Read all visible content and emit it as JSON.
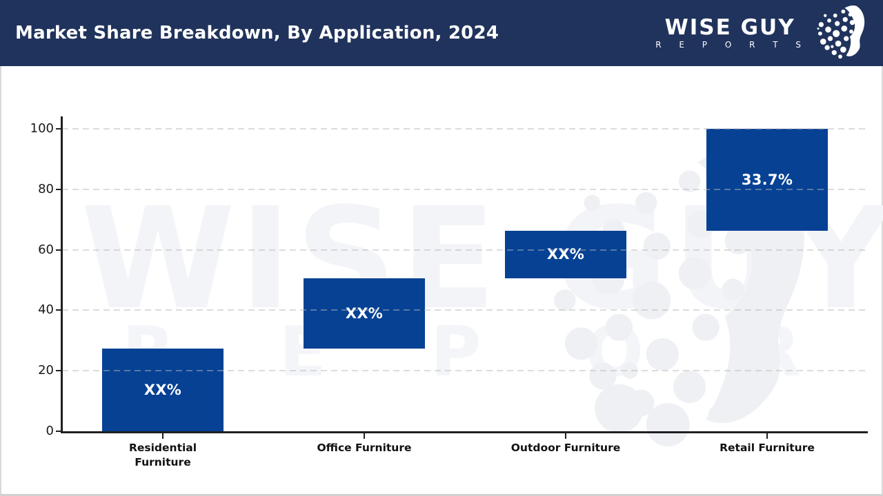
{
  "header": {
    "title": "Market Share Breakdown, By Application, 2024",
    "logo": {
      "line1": "WISE GUY",
      "line2": "R E P O R T S"
    },
    "bg_color": "#20335c"
  },
  "watermark": {
    "line1": "WISE GUY",
    "line2": "R E P O R T S"
  },
  "chart_data": {
    "type": "bar",
    "subtype": "floating-waterfall-segments",
    "title": "Market Share Breakdown, By Application, 2024",
    "categories": [
      "Residential\nFurniture",
      "Office Furniture",
      "Outdoor Furniture",
      "Retail Furniture"
    ],
    "segments": [
      {
        "category": "Residential Furniture",
        "start": 0,
        "end": 27.3,
        "value": 27.3,
        "label": "XX%"
      },
      {
        "category": "Office Furniture",
        "start": 27.3,
        "end": 50.6,
        "value": 23.3,
        "label": "XX%"
      },
      {
        "category": "Outdoor Furniture",
        "start": 50.6,
        "end": 66.3,
        "value": 15.7,
        "label": "XX%"
      },
      {
        "category": "Retail Furniture",
        "start": 66.3,
        "end": 100,
        "value": 33.7,
        "label": "33.7%"
      }
    ],
    "yticks": [
      0,
      20,
      40,
      60,
      80,
      100
    ],
    "ylim": [
      0,
      104.3
    ],
    "grid": "dashed horizontal",
    "legend": "none",
    "bar_color": "#064194",
    "bar_label_color": "#ffffff",
    "axis_color": "#1f1f1f"
  }
}
